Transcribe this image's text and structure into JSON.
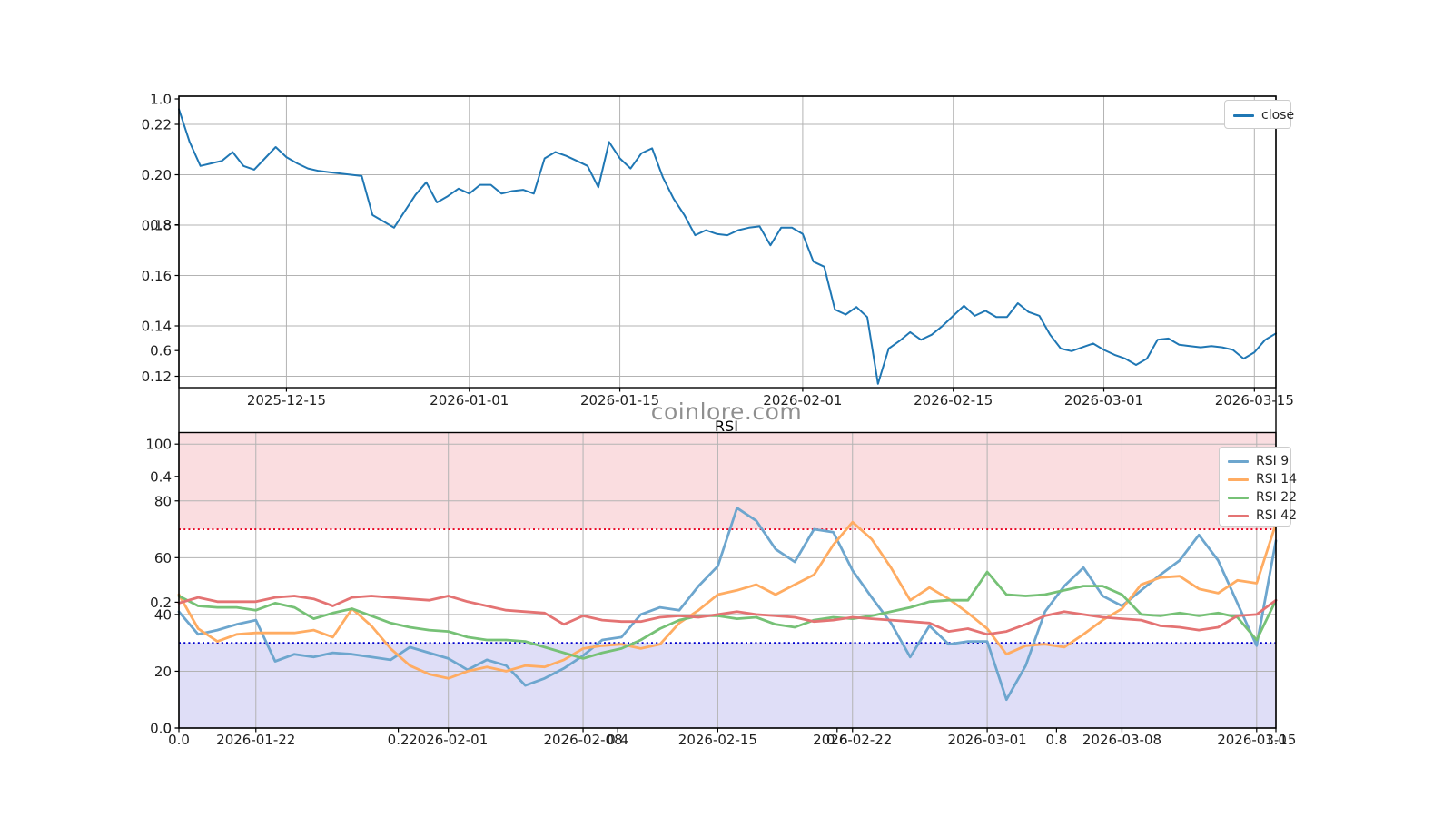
{
  "watermark": "coinlore.com",
  "colors": {
    "close_line": "#1f77b4",
    "rsi9": "#6da6ce",
    "rsi14": "#ffac62",
    "rsi22": "#76c176",
    "rsi42": "#e47373",
    "overbought_band": "#fadde0",
    "oversold_band": "#dfdef7",
    "overbought_dotted_line": "#e8001f",
    "oversold_dotted_line": "#0000cd",
    "gridline": "#b3b3b3",
    "tick_text": "#1f1f1f",
    "watermark_text": "#8f8f8f"
  },
  "overlay_axis": {
    "y_tick_labels": [
      "1.0",
      "0.8",
      "0.6",
      "0.4",
      "0.2",
      "0.0"
    ],
    "x_tick_labels": [
      "0.0",
      "0.2",
      "0.4",
      "0.6",
      "0.8",
      "1.0"
    ]
  },
  "chart_data": [
    {
      "type": "line",
      "title": "",
      "legend_position": "upper right",
      "grid": true,
      "ylim": [
        0.1155,
        0.2312
      ],
      "ytick_labels": [
        "0.12",
        "0.14",
        "0.16",
        "0.18",
        "0.20",
        "0.22"
      ],
      "xtick_labels": [
        "2025-12-15",
        "2026-01-01",
        "2026-01-15",
        "2026-02-01",
        "2026-02-15",
        "2026-03-01",
        "2026-03-15"
      ],
      "x": [
        "2025-12-05",
        "2025-12-06",
        "2025-12-07",
        "2025-12-08",
        "2025-12-09",
        "2025-12-10",
        "2025-12-11",
        "2025-12-12",
        "2025-12-13",
        "2025-12-14",
        "2025-12-15",
        "2025-12-16",
        "2025-12-17",
        "2025-12-18",
        "2025-12-19",
        "2025-12-20",
        "2025-12-21",
        "2025-12-22",
        "2025-12-23",
        "2025-12-24",
        "2025-12-25",
        "2025-12-26",
        "2025-12-27",
        "2025-12-28",
        "2025-12-29",
        "2025-12-30",
        "2025-12-31",
        "2026-01-01",
        "2026-01-02",
        "2026-01-03",
        "2026-01-04",
        "2026-01-05",
        "2026-01-06",
        "2026-01-07",
        "2026-01-08",
        "2026-01-09",
        "2026-01-10",
        "2026-01-11",
        "2026-01-12",
        "2026-01-13",
        "2026-01-14",
        "2026-01-15",
        "2026-01-16",
        "2026-01-17",
        "2026-01-18",
        "2026-01-19",
        "2026-01-20",
        "2026-01-21",
        "2026-01-22",
        "2026-01-23",
        "2026-01-24",
        "2026-01-25",
        "2026-01-26",
        "2026-01-27",
        "2026-01-28",
        "2026-01-29",
        "2026-01-30",
        "2026-01-31",
        "2026-02-01",
        "2026-02-02",
        "2026-02-03",
        "2026-02-04",
        "2026-02-05",
        "2026-02-06",
        "2026-02-07",
        "2026-02-08",
        "2026-02-09",
        "2026-02-10",
        "2026-02-11",
        "2026-02-12",
        "2026-02-13",
        "2026-02-14",
        "2026-02-15",
        "2026-02-16",
        "2026-02-17",
        "2026-02-18",
        "2026-02-19",
        "2026-02-20",
        "2026-02-21",
        "2026-02-22",
        "2026-02-23",
        "2026-02-24",
        "2026-02-25",
        "2026-02-26",
        "2026-02-27",
        "2026-02-28",
        "2026-03-01",
        "2026-03-02",
        "2026-03-03",
        "2026-03-04",
        "2026-03-05",
        "2026-03-06",
        "2026-03-07",
        "2026-03-08",
        "2026-03-09",
        "2026-03-10",
        "2026-03-11",
        "2026-03-12",
        "2026-03-13",
        "2026-03-14",
        "2026-03-15",
        "2026-03-16",
        "2026-03-17"
      ],
      "series": [
        {
          "name": "close",
          "color": "#1f77b4",
          "values": [
            0.226,
            0.213,
            0.2035,
            0.2045,
            0.2055,
            0.209,
            0.2035,
            0.202,
            0.2065,
            0.211,
            0.207,
            0.2045,
            0.2025,
            0.2015,
            0.201,
            0.2005,
            0.2,
            0.1995,
            0.184,
            0.1815,
            0.179,
            0.1855,
            0.192,
            0.197,
            0.189,
            0.1915,
            0.1945,
            0.1925,
            0.196,
            0.196,
            0.1925,
            0.1935,
            0.194,
            0.1925,
            0.2065,
            0.209,
            0.2075,
            0.2055,
            0.2035,
            0.195,
            0.213,
            0.2065,
            0.2025,
            0.2085,
            0.2105,
            0.199,
            0.1905,
            0.184,
            0.176,
            0.178,
            0.1765,
            0.176,
            0.178,
            0.179,
            0.1795,
            0.172,
            0.179,
            0.179,
            0.1765,
            0.1655,
            0.1635,
            0.1465,
            0.1445,
            0.1475,
            0.1435,
            0.117,
            0.131,
            0.134,
            0.1375,
            0.1345,
            0.1365,
            0.14,
            0.144,
            0.148,
            0.144,
            0.146,
            0.1435,
            0.1435,
            0.149,
            0.1455,
            0.144,
            0.1365,
            0.131,
            0.13,
            0.1315,
            0.133,
            0.1305,
            0.1285,
            0.127,
            0.1245,
            0.127,
            0.1345,
            0.135,
            0.1325,
            0.132,
            0.1315,
            0.132,
            0.1315,
            0.1305,
            0.127,
            0.1295,
            0.1345,
            0.137
          ]
        }
      ]
    },
    {
      "type": "line",
      "title": "RSI",
      "legend_position": "upper right",
      "grid": true,
      "ylim": [
        0,
        104
      ],
      "ytick_labels": [
        "0",
        "20",
        "40",
        "60",
        "80",
        "100"
      ],
      "xtick_labels": [
        "2026-01-22",
        "2026-02-01",
        "2026-02-08",
        "2026-02-15",
        "2026-02-22",
        "2026-03-01",
        "2026-03-08",
        "2026-03-15"
      ],
      "bands": [
        {
          "from": 70,
          "to": 104,
          "color": "#fadde0",
          "meaning": "overbought"
        },
        {
          "from": 0,
          "to": 30,
          "color": "#dfdef7",
          "meaning": "oversold"
        }
      ],
      "hlines": [
        {
          "y": 70,
          "color": "#e8001f",
          "style": "dotted"
        },
        {
          "y": 30,
          "color": "#0000cd",
          "style": "dotted"
        }
      ],
      "x": [
        "2026-01-18",
        "2026-01-19",
        "2026-01-20",
        "2026-01-21",
        "2026-01-22",
        "2026-01-23",
        "2026-01-24",
        "2026-01-25",
        "2026-01-26",
        "2026-01-27",
        "2026-01-28",
        "2026-01-29",
        "2026-01-30",
        "2026-01-31",
        "2026-02-01",
        "2026-02-02",
        "2026-02-03",
        "2026-02-04",
        "2026-02-05",
        "2026-02-06",
        "2026-02-07",
        "2026-02-08",
        "2026-02-09",
        "2026-02-10",
        "2026-02-11",
        "2026-02-12",
        "2026-02-13",
        "2026-02-14",
        "2026-02-15",
        "2026-02-16",
        "2026-02-17",
        "2026-02-18",
        "2026-02-19",
        "2026-02-20",
        "2026-02-21",
        "2026-02-22",
        "2026-02-23",
        "2026-02-24",
        "2026-02-25",
        "2026-02-26",
        "2026-02-27",
        "2026-02-28",
        "2026-03-01",
        "2026-03-02",
        "2026-03-03",
        "2026-03-04",
        "2026-03-05",
        "2026-03-06",
        "2026-03-07",
        "2026-03-08",
        "2026-03-09",
        "2026-03-10",
        "2026-03-11",
        "2026-03-12",
        "2026-03-13",
        "2026-03-14",
        "2026-03-15",
        "2026-03-16"
      ],
      "series": [
        {
          "name": "RSI 9",
          "color": "#6da6ce",
          "values": [
            41,
            33,
            34.5,
            36.5,
            38,
            23.5,
            26,
            25,
            26.5,
            26,
            25,
            24,
            28.5,
            26.5,
            24.5,
            20.5,
            24,
            22,
            15,
            17.5,
            21,
            25.5,
            31,
            32,
            40,
            42.5,
            41.5,
            50,
            57,
            77.5,
            73,
            63,
            58.5,
            70,
            69,
            55.5,
            46,
            37,
            25,
            36,
            29.5,
            30.5,
            30.5,
            10,
            22,
            41,
            50,
            56.5,
            46.5,
            43,
            48.5,
            54,
            59,
            68,
            59,
            44,
            29,
            66
          ]
        },
        {
          "name": "RSI 14",
          "color": "#ffac62",
          "values": [
            47,
            35,
            30.5,
            33,
            33.5,
            33.5,
            33.5,
            34.5,
            32,
            42,
            36,
            28,
            22,
            19,
            17.5,
            20,
            21.5,
            20,
            22,
            21.5,
            24,
            28,
            29,
            29.5,
            28,
            29.5,
            37,
            41.5,
            47,
            48.5,
            50.5,
            47,
            50.5,
            54,
            64.5,
            72.5,
            66.5,
            56.5,
            45,
            49.5,
            45.5,
            40.5,
            35,
            26,
            29,
            29.5,
            28.5,
            33,
            38,
            42,
            50.5,
            53,
            53.5,
            49,
            47.5,
            52,
            51,
            72
          ]
        },
        {
          "name": "RSI 22",
          "color": "#76c176",
          "values": [
            46.5,
            43,
            42.5,
            42.5,
            41.5,
            44,
            42.5,
            38.5,
            40.5,
            42,
            39.5,
            37,
            35.5,
            34.5,
            34,
            32,
            31,
            31,
            30.5,
            28.5,
            26.5,
            24.5,
            26.5,
            28,
            31,
            35,
            38,
            39.5,
            39.5,
            38.5,
            39,
            36.5,
            35.5,
            38,
            39,
            38.5,
            39.5,
            41,
            42.5,
            44.5,
            45,
            45,
            55,
            47,
            46.5,
            47,
            48.5,
            50,
            50,
            47,
            40,
            39.5,
            40.5,
            39.5,
            40.5,
            39,
            31,
            45
          ]
        },
        {
          "name": "RSI 42",
          "color": "#e47373",
          "values": [
            44,
            46,
            44.5,
            44.5,
            44.5,
            46,
            46.5,
            45.5,
            43,
            46,
            46.5,
            46,
            45.5,
            45,
            46.5,
            44.5,
            43,
            41.5,
            41,
            40.5,
            36.5,
            39.5,
            38,
            37.5,
            37.5,
            39,
            39.5,
            39,
            40,
            41,
            40,
            39.5,
            39,
            37.5,
            38,
            39,
            38.5,
            38,
            37.5,
            37,
            34,
            35,
            33,
            34,
            36.5,
            39.5,
            41,
            40,
            39,
            38.5,
            38,
            36,
            35.5,
            34.5,
            35.5,
            39.5,
            40,
            45
          ]
        }
      ]
    }
  ]
}
